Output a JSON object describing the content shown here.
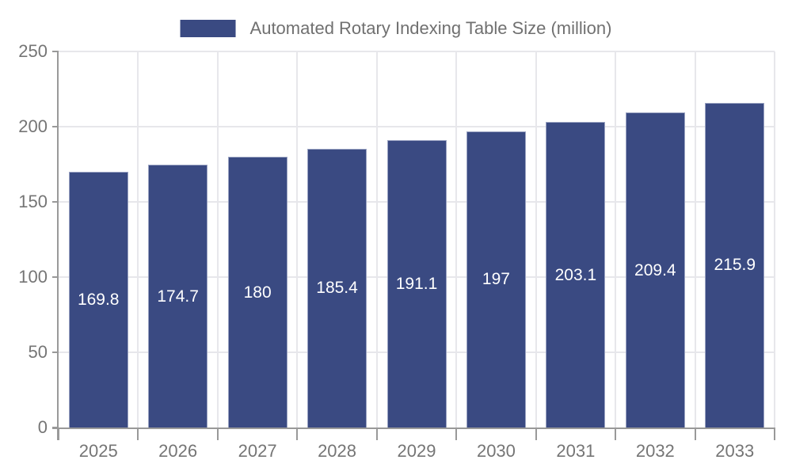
{
  "chart_data": {
    "type": "bar",
    "categories": [
      "2025",
      "2026",
      "2027",
      "2028",
      "2029",
      "2030",
      "2031",
      "2032",
      "2033"
    ],
    "series": [
      {
        "name": "Automated Rotary Indexing Table Size (million)",
        "values": [
          169.8,
          174.7,
          180,
          185.4,
          191.1,
          197,
          203.1,
          209.4,
          215.9
        ],
        "value_labels": [
          "169.8",
          "174.7",
          "180",
          "185.4",
          "191.1",
          "197",
          "203.1",
          "209.4",
          "215.9"
        ],
        "color": "#3A4A82"
      }
    ],
    "title": "",
    "xlabel": "",
    "ylabel": "",
    "ylim": [
      0,
      250
    ],
    "yticks": [
      0,
      50,
      100,
      150,
      200,
      250
    ],
    "grid": true,
    "legend_position": "top-center",
    "colors": {
      "bar_fill": "#3A4A82",
      "bar_border": "#9aa3c2",
      "grid_line": "#e7e7eb",
      "axis_line": "#999999",
      "tick_label_text": "#757575",
      "legend_text": "#707070",
      "value_label_text": "#ffffff",
      "background": "#ffffff"
    }
  }
}
